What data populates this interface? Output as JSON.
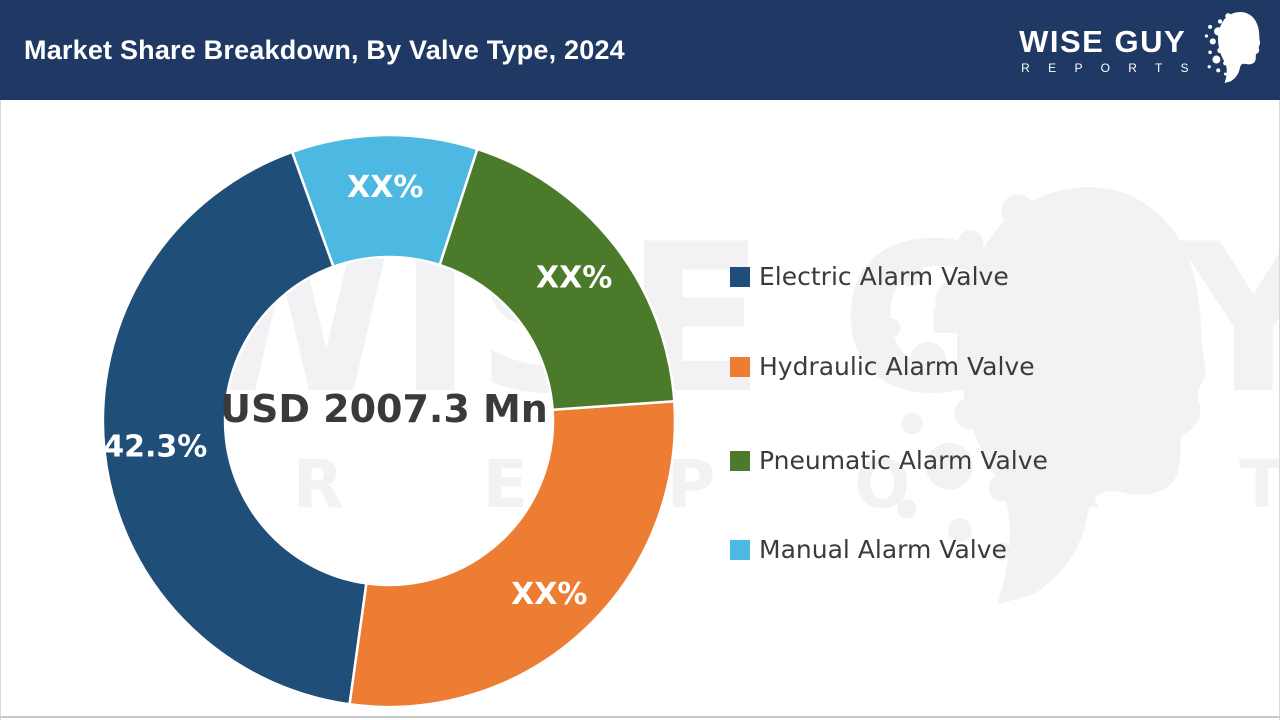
{
  "header": {
    "title": "Market Share Breakdown, By Valve Type, 2024",
    "bg_color": "#1f3864",
    "logo": {
      "line1": "WISE GUY",
      "line2": "R E P O R T S"
    }
  },
  "chart_data": {
    "type": "pie",
    "variant": "donut",
    "title": "Market Share Breakdown, By Valve Type, 2024",
    "center_label": "USD 2007.3 Mn",
    "start_angle_deg": 72,
    "legend_position": "right",
    "segments": [
      {
        "name": "Manual Alarm Valve",
        "value_pct": 10.5,
        "display_label": "XX%",
        "color": "#4db8e2",
        "label_color": "#ffffff"
      },
      {
        "name": "Electric Alarm Valve",
        "value_pct": 42.3,
        "display_label": "42.3%",
        "color": "#1f4e78",
        "label_color": "#ffffff"
      },
      {
        "name": "Hydraulic Alarm Valve",
        "value_pct": 28.3,
        "display_label": "XX%",
        "color": "#ed7d33",
        "label_color": "#ffffff"
      },
      {
        "name": "Pneumatic Alarm Valve",
        "value_pct": 18.9,
        "display_label": "XX%",
        "color": "#4b7b2a",
        "label_color": "#ffffff"
      }
    ]
  },
  "legend": {
    "items": [
      {
        "label": "Electric Alarm Valve",
        "color": "#1f4e78"
      },
      {
        "label": "Hydraulic Alarm Valve",
        "color": "#ed7d33"
      },
      {
        "label": "Pneumatic Alarm Valve",
        "color": "#4b7b2a"
      },
      {
        "label": "Manual Alarm Valve",
        "color": "#4db8e2"
      }
    ]
  },
  "watermark": {
    "line1": "WISE GUY",
    "line2": "R E P O R T S"
  }
}
